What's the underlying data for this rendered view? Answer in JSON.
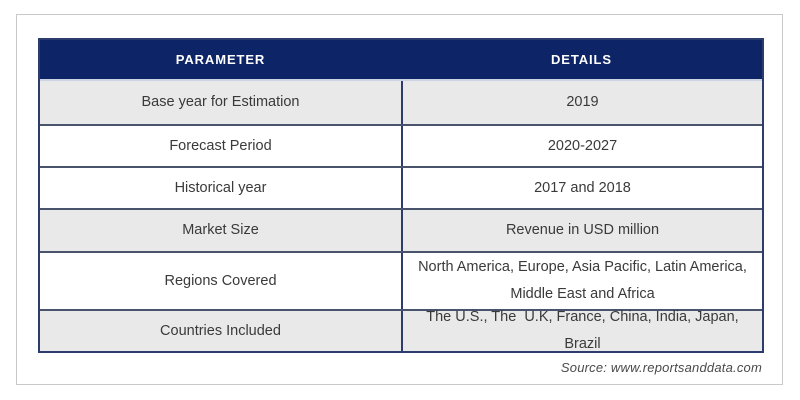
{
  "colors": {
    "header_bg": "#0d2466",
    "row_alt_bg": "#e9e9ea",
    "table_border": "#2b3c6d",
    "row_divider": "#49536b",
    "card_border": "#c9c9c9",
    "header_text": "#ffffff",
    "cell_text": "#3a3a3a"
  },
  "table": {
    "columns": [
      "PARAMETER",
      "DETAILS"
    ],
    "rows": [
      {
        "parameter": "Base year for Estimation",
        "details": "2019"
      },
      {
        "parameter": "Forecast Period",
        "details": "2020-2027"
      },
      {
        "parameter": "Historical year",
        "details": "2017 and 2018"
      },
      {
        "parameter": "Market Size",
        "details": "Revenue in USD million"
      },
      {
        "parameter": "Regions Covered",
        "details": "North America, Europe, Asia Pacific, Latin America, Middle East and Africa"
      },
      {
        "parameter": "Countries Included",
        "details": "The U.S., The  U.K, France, China, India, Japan, Brazil"
      }
    ]
  },
  "source": "Source: www.reportsanddata.com"
}
